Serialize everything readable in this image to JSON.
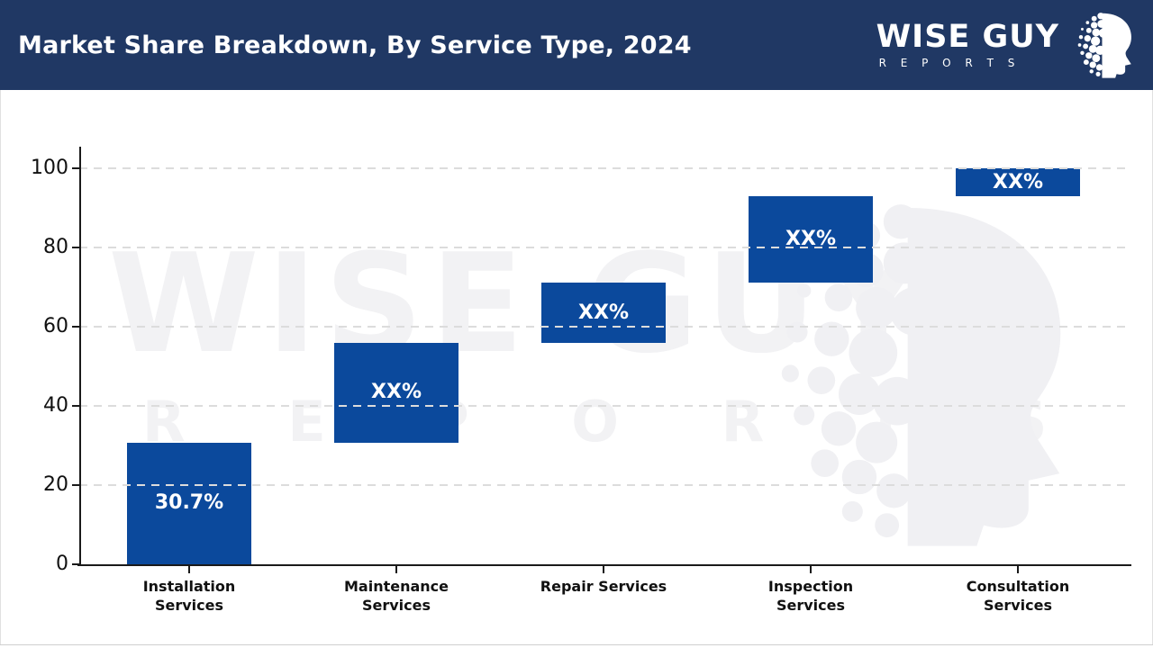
{
  "header": {
    "title": "Market Share Breakdown, By Service Type, 2024",
    "logo": {
      "line1": "WISE GUY",
      "line2": "R E P O R T S",
      "face_icon": "dotted-head-profile"
    }
  },
  "watermark": {
    "line1": "WISE GUY",
    "line2": "R E P O R T S",
    "face_icon": "dotted-head-profile"
  },
  "chart_data": {
    "type": "bar",
    "subtype": "waterfall",
    "title": "Market Share Breakdown, By Service Type, 2024",
    "categories": [
      "Installation Services",
      "Maintenance Services",
      "Repair Services",
      "Inspection Services",
      "Consultation Services"
    ],
    "category_label_lines": [
      [
        "Installation",
        "Services"
      ],
      [
        "Maintenance",
        "Services"
      ],
      [
        "Repair Services"
      ],
      [
        "Inspection",
        "Services"
      ],
      [
        "Consultation",
        "Services"
      ]
    ],
    "segments": [
      {
        "category": "Installation Services",
        "start": 0,
        "end": 30.7,
        "label": "30.7%"
      },
      {
        "category": "Maintenance Services",
        "start": 30.7,
        "end": 55.9,
        "label": "XX%"
      },
      {
        "category": "Repair Services",
        "start": 55.9,
        "end": 71.1,
        "label": "XX%"
      },
      {
        "category": "Inspection Services",
        "start": 71.1,
        "end": 92.9,
        "label": "XX%"
      },
      {
        "category": "Consultation Services",
        "start": 92.9,
        "end": 100,
        "label": "XX%"
      }
    ],
    "ylabel": "",
    "xlabel": "",
    "yticks": [
      0,
      20,
      40,
      60,
      80,
      100
    ],
    "ylim": [
      0,
      105
    ],
    "grid": "horizontal-dashed",
    "legend": "none",
    "bar_color": "#0b499c",
    "bar_label_color": "#ffffff"
  },
  "colors": {
    "header_bg": "#203864",
    "bar": "#0b499c",
    "axis": "#1a1a1a",
    "gridline": "#dcdcdc",
    "watermark": "#f2f2f4",
    "page_bg": "#ffffff"
  }
}
